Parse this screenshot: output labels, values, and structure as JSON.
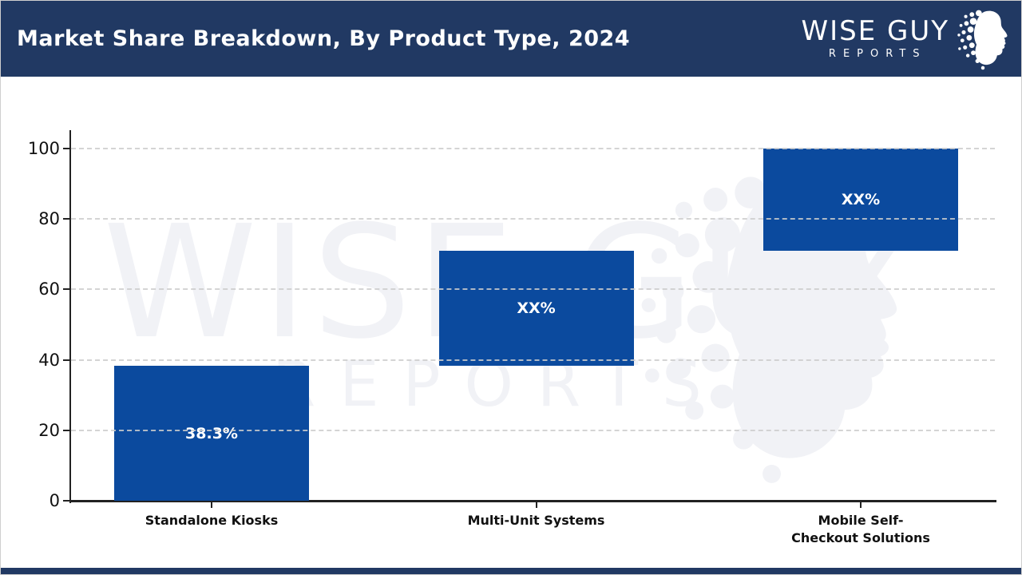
{
  "header": {
    "title": "Market Share Breakdown, By Product Type, 2024",
    "logo": {
      "wordmark": "WISE GUY",
      "subtext": "REPORTS"
    }
  },
  "watermark": {
    "wordmark": "WISE GUY",
    "subtext": "REPORTS"
  },
  "colors": {
    "header_bg": "#213963",
    "bar": "#0b4a9e",
    "axis": "#222222",
    "grid": "#cdcdcd",
    "value_label": "#ffffff",
    "watermark": "#f1f2f6"
  },
  "chart_data": {
    "type": "bar",
    "subtype": "floating-cumulative",
    "title": "Market Share Breakdown, By Product Type, 2024",
    "categories": [
      "Standalone Kiosks",
      "Multi-Unit Systems",
      "Mobile Self-\nCheckout Solutions"
    ],
    "bars": [
      {
        "category": "Standalone Kiosks",
        "start": 0,
        "end": 38.3,
        "label": "38.3%"
      },
      {
        "category": "Multi-Unit Systems",
        "start": 38.3,
        "end": 71,
        "label": "XX%"
      },
      {
        "category": "Mobile Self-Checkout Solutions",
        "start": 71,
        "end": 100,
        "label": "XX%"
      }
    ],
    "xlabel": "",
    "ylabel": "",
    "ylim": [
      0,
      100
    ],
    "yticks": [
      0,
      20,
      40,
      60,
      80,
      100
    ],
    "grid": "horizontal-dashed",
    "legend": "none"
  }
}
